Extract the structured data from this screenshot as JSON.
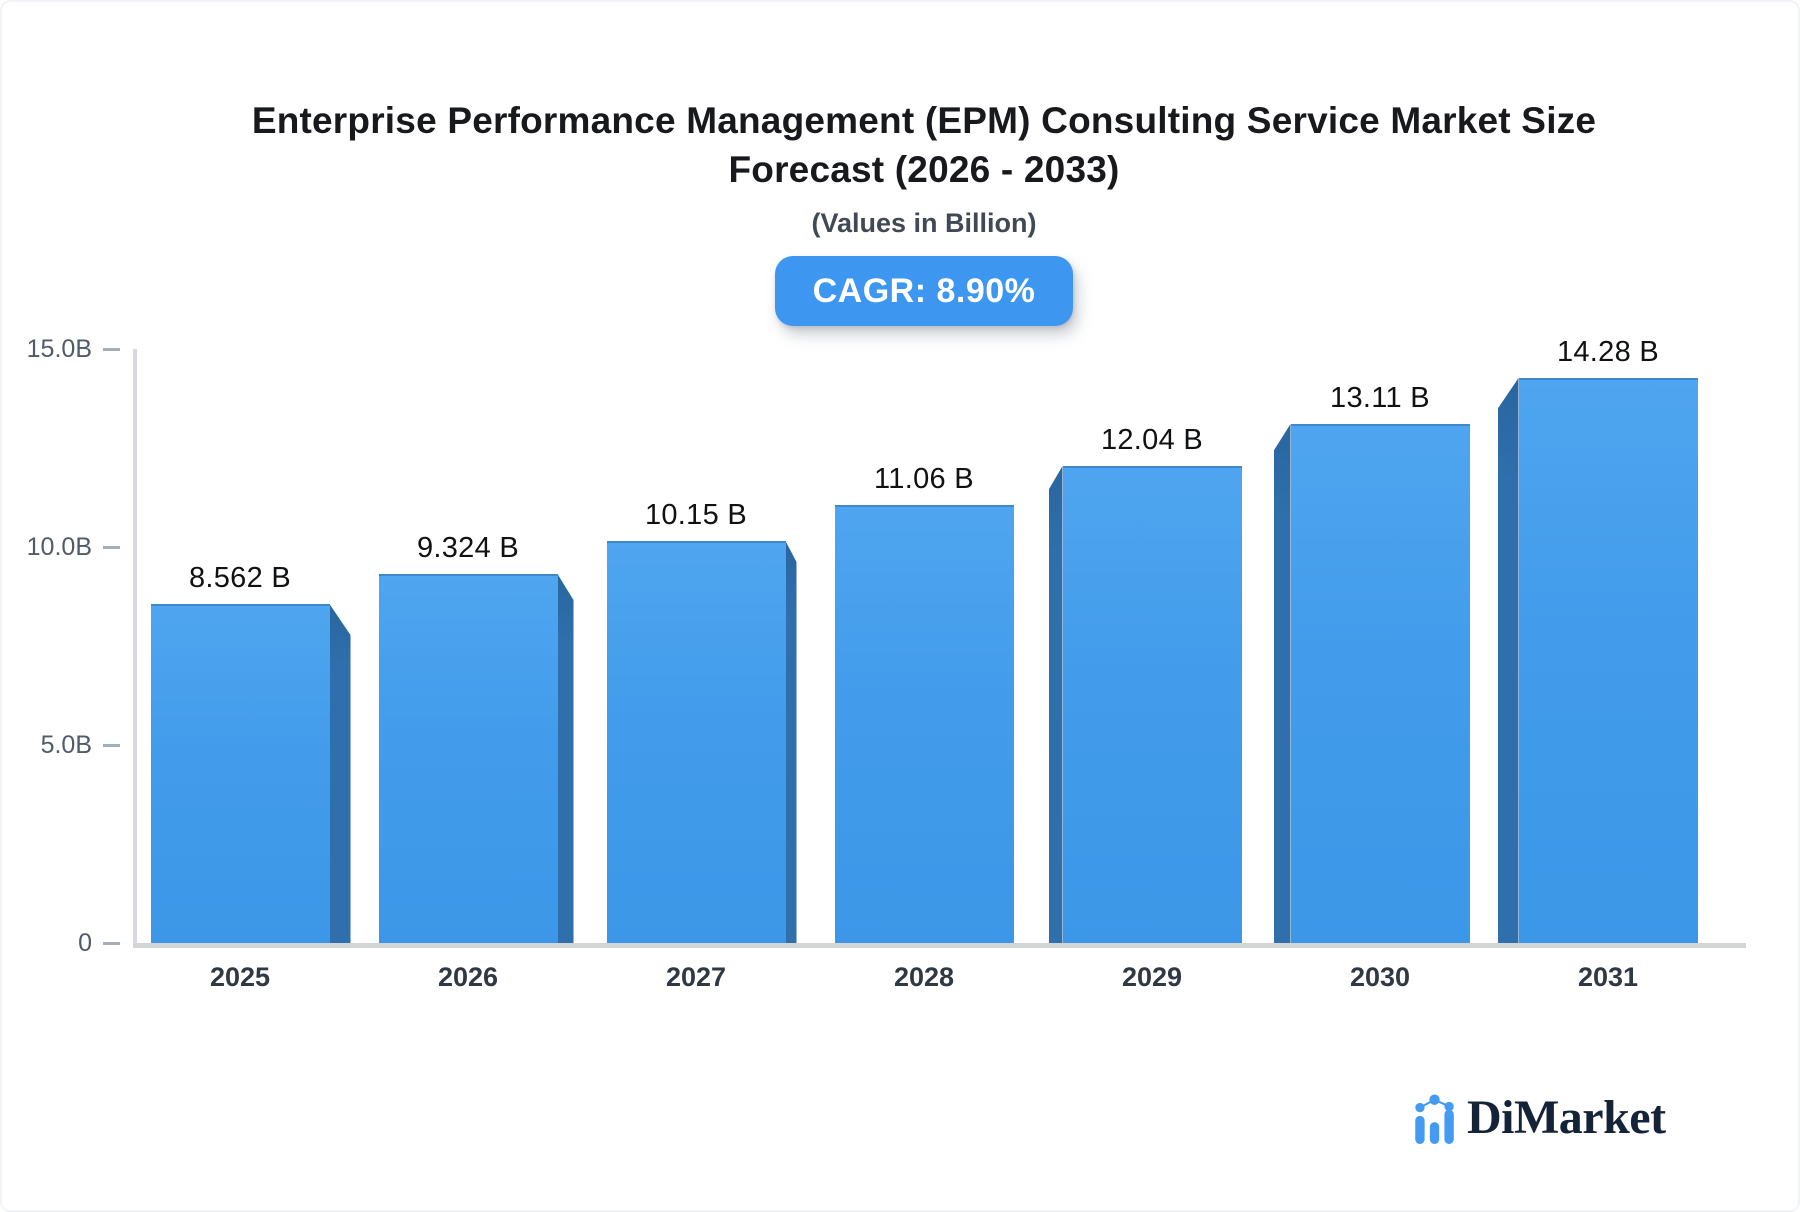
{
  "header": {
    "title_lines": [
      "Enterprise Performance Management (EPM) Consulting Service Market Size",
      "Forecast (2026 - 2033)"
    ],
    "subtitle": "(Values in Billion)",
    "cagr_label": "CAGR: 8.90%"
  },
  "chart_data": {
    "type": "bar",
    "title": "Enterprise Performance Management (EPM) Consulting Service Market Size Forecast (2026 - 2033)",
    "subtitle": "(Values in Billion)",
    "cagr": "8.90%",
    "categories": [
      "2025",
      "2026",
      "2027",
      "2028",
      "2029",
      "2030",
      "2031"
    ],
    "values": [
      8.562,
      9.324,
      10.15,
      11.06,
      12.04,
      13.11,
      14.28
    ],
    "value_labels": [
      "8.562 B",
      "9.324 B",
      "10.15 B",
      "11.06 B",
      "12.04 B",
      "13.11 B",
      "14.28 B"
    ],
    "unit": "Billion",
    "y_ticks": [
      "15.0B",
      "10.0B",
      "5.0B",
      "0"
    ],
    "y_tick_values": [
      15,
      10,
      5,
      0
    ],
    "ylim": [
      0,
      15
    ],
    "xlabel": "",
    "ylabel": "",
    "grid": false,
    "legend": "none",
    "bar_color": "#429ceb",
    "bar_side_color": "#2e6fac",
    "badge_color": "#3d97f0"
  },
  "footer": {
    "brand": "DiMarket"
  }
}
